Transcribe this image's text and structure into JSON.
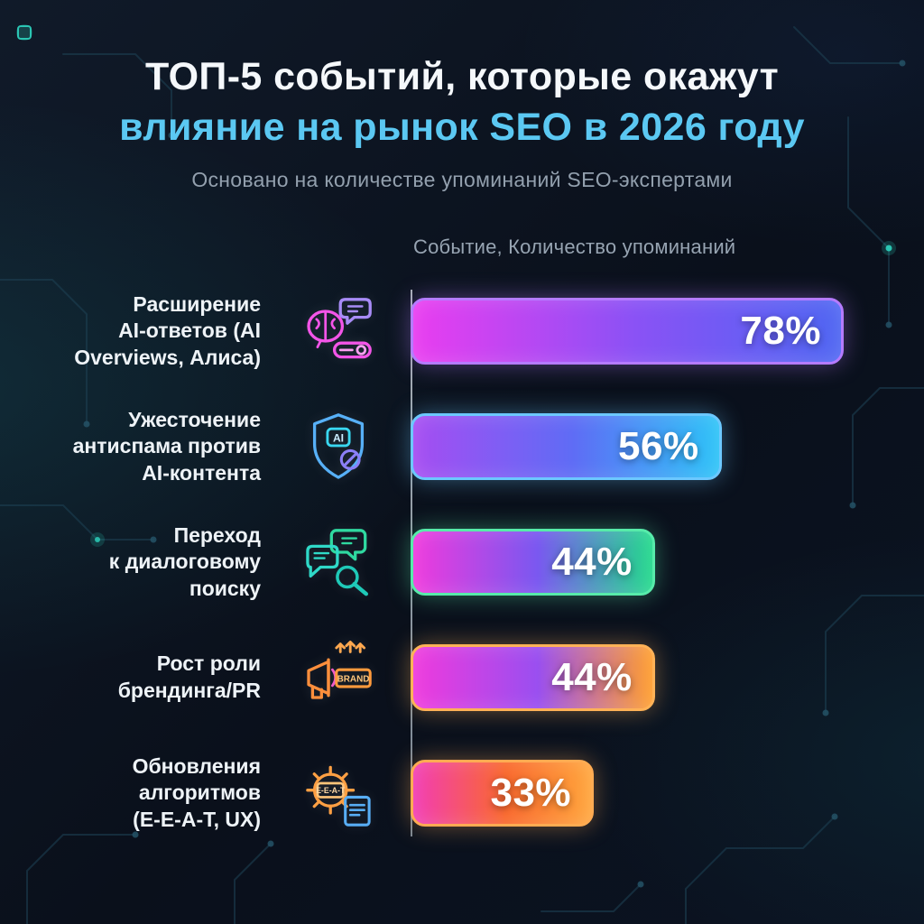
{
  "page": {
    "title_line1": "ТОП-5 событий, которые окажут",
    "title_line2": "влияние на рынок SEO в 2026 году",
    "subtitle": "Основано на количестве упоминаний SEO-экспертами"
  },
  "chart_data": {
    "type": "bar",
    "orientation": "horizontal",
    "column_header": "Событие, Количество упоминаний",
    "xlabel": "",
    "ylabel": "",
    "xlim": [
      0,
      78
    ],
    "max_value": 78,
    "unit": "%",
    "categories": [
      "Расширение AI-ответов (AI Overviews, Алиса)",
      "Ужесточение антиспама против AI-контента",
      "Переход к диалоговому поиску",
      "Рост роли брендинга/PR",
      "Обновления алгоритмов (E-E-A-T, UX)"
    ],
    "values": [
      78,
      56,
      44,
      44,
      33
    ],
    "rows": [
      {
        "label": "Расширение\nAI-ответов (AI\nOverviews, Алиса)",
        "value": 78,
        "value_label": "78%",
        "icon": "ai-answers-brain-icon",
        "bar_gradient": [
          "#e93df0",
          "#8a52f5",
          "#4f66f2"
        ],
        "border_color": "#b57bff"
      },
      {
        "label": "Ужесточение\nантиспама против\nAI-контента",
        "value": 56,
        "value_label": "56%",
        "icon": "antispam-shield-icon",
        "icon_text": "AI",
        "bar_gradient": [
          "#a64df2",
          "#5f6cf5",
          "#2ec3f7"
        ],
        "border_color": "#6cc8ff"
      },
      {
        "label": "Переход\nк диалоговому\nпоиску",
        "value": 44,
        "value_label": "44%",
        "icon": "dialog-search-icon",
        "bar_gradient": [
          "#ef3add",
          "#7a58f0",
          "#23d98c"
        ],
        "border_color": "#57ebaa"
      },
      {
        "label": "Рост роли\nбрендинга/PR",
        "value": 44,
        "value_label": "44%",
        "icon": "branding-megaphone-icon",
        "icon_text": "BRAND",
        "bar_gradient": [
          "#ef3add",
          "#9a4ff0",
          "#ff9e2e"
        ],
        "border_color": "#ffb257"
      },
      {
        "label": "Обновления\nалгоритмов\n(E-E-A-T, UX)",
        "value": 33,
        "value_label": "33%",
        "icon": "algorithms-gear-icon",
        "icon_text": "E-E-A-T",
        "bar_gradient": [
          "#f23db4",
          "#f9692e",
          "#ffa53c"
        ],
        "border_color": "#ffab52"
      }
    ]
  },
  "colors": {
    "background": "#0b1322",
    "title": "#f5f8fb",
    "title_accent": "#5bc8f2",
    "subtitle": "#93a0ae",
    "axis": "#c4cfd9",
    "circuit": "#1d4052",
    "glow": "#2dd4bf"
  }
}
